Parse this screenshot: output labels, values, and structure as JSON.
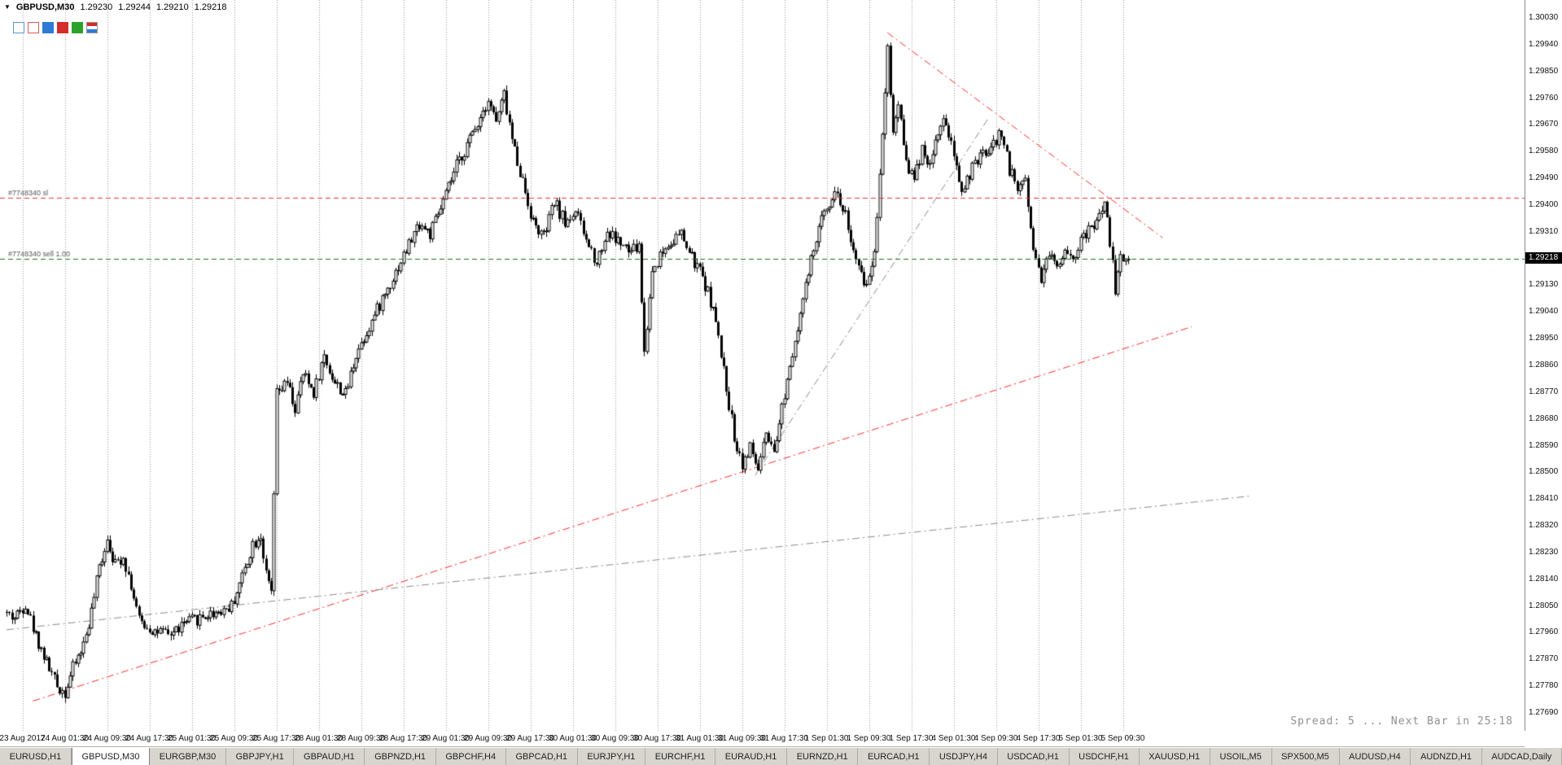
{
  "symbol_info": {
    "symbol": "GBPUSD,M30",
    "open": "1.29230",
    "high": "1.29244",
    "low": "1.29210",
    "close": "1.29218"
  },
  "toolbar_swatches": [
    {
      "name": "outline-blue-swatch",
      "fill": "#ffffff",
      "border": "#5b97d6"
    },
    {
      "name": "outline-red-swatch",
      "fill": "#ffffff",
      "border": "#d65b5b"
    },
    {
      "name": "blue-swatch",
      "fill": "#2b7bd4",
      "border": "#2b7bd4"
    },
    {
      "name": "red-swatch",
      "fill": "#d42b2b",
      "border": "#d42b2b"
    },
    {
      "name": "green-swatch",
      "fill": "#2ba32b",
      "border": "#2ba32b"
    },
    {
      "name": "flag-swatch",
      "stripes": [
        "#d42b2b",
        "#ffffff",
        "#2b7bd4"
      ],
      "border": "#999999"
    }
  ],
  "chart_data": {
    "type": "candlestick",
    "title": "GBPUSD,M30",
    "symbol": "GBPUSD",
    "timeframe": "M30",
    "price_axis": {
      "max": 1.3003,
      "min": 1.2769,
      "step": 0.0009,
      "labels": [
        "1.30030",
        "1.29940",
        "1.29850",
        "1.29760",
        "1.29670",
        "1.29580",
        "1.29490",
        "1.29400",
        "1.29310",
        "1.29220",
        "1.29130",
        "1.29040",
        "1.28950",
        "1.28860",
        "1.28770",
        "1.28680",
        "1.28590",
        "1.28500",
        "1.28410",
        "1.28320",
        "1.28230",
        "1.28140",
        "1.28050",
        "1.27960",
        "1.27870",
        "1.27780",
        "1.27690"
      ]
    },
    "time_axis": {
      "labels": [
        "23 Aug 2017",
        "24 Aug 01:30",
        "24 Aug 09:30",
        "24 Aug 17:30",
        "25 Aug 01:30",
        "25 Aug 09:30",
        "25 Aug 17:30",
        "28 Aug 01:30",
        "28 Aug 09:30",
        "28 Aug 17:30",
        "29 Aug 01:30",
        "29 Aug 09:30",
        "29 Aug 17:30",
        "30 Aug 01:30",
        "30 Aug 09:30",
        "30 Aug 17:30",
        "31 Aug 01:30",
        "31 Aug 09:30",
        "31 Aug 17:30",
        "1 Sep 01:30",
        "1 Sep 09:30",
        "1 Sep 17:30",
        "4 Sep 01:30",
        "4 Sep 09:30",
        "4 Sep 17:30",
        "5 Sep 01:30",
        "5 Sep 09:30"
      ],
      "first_label_bar": 6,
      "bars_per_label": 16
    },
    "bars_total": 425,
    "current_price": 1.29218,
    "current_price_label": "1.29218",
    "path_anchors": [
      [
        0,
        1.2803
      ],
      [
        4,
        1.2801
      ],
      [
        8,
        1.2806
      ],
      [
        12,
        1.2795
      ],
      [
        16,
        1.2786
      ],
      [
        20,
        1.2778
      ],
      [
        23,
        1.2776
      ],
      [
        26,
        1.2784
      ],
      [
        30,
        1.2792
      ],
      [
        33,
        1.2803
      ],
      [
        36,
        1.2818
      ],
      [
        39,
        1.2828
      ],
      [
        42,
        1.2819
      ],
      [
        45,
        1.2822
      ],
      [
        48,
        1.2812
      ],
      [
        51,
        1.28
      ],
      [
        56,
        1.2797
      ],
      [
        62,
        1.2795
      ],
      [
        68,
        1.2799
      ],
      [
        74,
        1.2801
      ],
      [
        80,
        1.2803
      ],
      [
        86,
        1.2805
      ],
      [
        90,
        1.2815
      ],
      [
        94,
        1.2826
      ],
      [
        97,
        1.2829
      ],
      [
        99,
        1.2815
      ],
      [
        101,
        1.2809
      ],
      [
        103,
        1.2876
      ],
      [
        107,
        1.288
      ],
      [
        110,
        1.2871
      ],
      [
        113,
        1.2883
      ],
      [
        117,
        1.2877
      ],
      [
        121,
        1.2889
      ],
      [
        125,
        1.288
      ],
      [
        129,
        1.2876
      ],
      [
        133,
        1.289
      ],
      [
        139,
        1.2901
      ],
      [
        145,
        1.2912
      ],
      [
        151,
        1.2923
      ],
      [
        157,
        1.2934
      ],
      [
        161,
        1.293
      ],
      [
        166,
        1.2941
      ],
      [
        171,
        1.2953
      ],
      [
        176,
        1.2962
      ],
      [
        180,
        1.297
      ],
      [
        183,
        1.2976
      ],
      [
        186,
        1.2968
      ],
      [
        189,
        1.2977
      ],
      [
        192,
        1.2962
      ],
      [
        196,
        1.2948
      ],
      [
        200,
        1.2934
      ],
      [
        204,
        1.2929
      ],
      [
        208,
        1.2941
      ],
      [
        212,
        1.2934
      ],
      [
        216,
        1.2938
      ],
      [
        220,
        1.2928
      ],
      [
        224,
        1.2921
      ],
      [
        228,
        1.2931
      ],
      [
        232,
        1.2928
      ],
      [
        236,
        1.2924
      ],
      [
        240,
        1.2926
      ],
      [
        242,
        1.289
      ],
      [
        245,
        1.2918
      ],
      [
        248,
        1.2923
      ],
      [
        252,
        1.2928
      ],
      [
        256,
        1.293
      ],
      [
        260,
        1.2922
      ],
      [
        264,
        1.2916
      ],
      [
        268,
        1.2905
      ],
      [
        272,
        1.2884
      ],
      [
        276,
        1.2862
      ],
      [
        279,
        1.2853
      ],
      [
        282,
        1.2858
      ],
      [
        285,
        1.2851
      ],
      [
        288,
        1.2862
      ],
      [
        291,
        1.2855
      ],
      [
        294,
        1.2872
      ],
      [
        298,
        1.2891
      ],
      [
        302,
        1.2908
      ],
      [
        306,
        1.2925
      ],
      [
        310,
        1.2938
      ],
      [
        314,
        1.2945
      ],
      [
        318,
        1.2937
      ],
      [
        322,
        1.292
      ],
      [
        326,
        1.2913
      ],
      [
        329,
        1.2924
      ],
      [
        332,
        1.2965
      ],
      [
        334,
        1.2993
      ],
      [
        336,
        1.2964
      ],
      [
        338,
        1.2975
      ],
      [
        341,
        1.2955
      ],
      [
        344,
        1.2948
      ],
      [
        347,
        1.296
      ],
      [
        350,
        1.2953
      ],
      [
        353,
        1.2965
      ],
      [
        356,
        1.2968
      ],
      [
        359,
        1.2955
      ],
      [
        362,
        1.2945
      ],
      [
        366,
        1.2952
      ],
      [
        370,
        1.2957
      ],
      [
        374,
        1.296
      ],
      [
        377,
        1.2965
      ],
      [
        380,
        1.2952
      ],
      [
        383,
        1.2946
      ],
      [
        386,
        1.2949
      ],
      [
        389,
        1.2925
      ],
      [
        392,
        1.2916
      ],
      [
        395,
        1.2924
      ],
      [
        398,
        1.2919
      ],
      [
        401,
        1.2926
      ],
      [
        404,
        1.2922
      ],
      [
        407,
        1.2928
      ],
      [
        410,
        1.2931
      ],
      [
        413,
        1.2935
      ],
      [
        416,
        1.294
      ],
      [
        418,
        1.2928
      ],
      [
        420,
        1.2912
      ],
      [
        422,
        1.2922
      ],
      [
        424,
        1.29218
      ]
    ],
    "trendlines": [
      {
        "name": "rising-support-red-trendline",
        "color": "#ff2a2a",
        "p1": [
          10,
          1.2773
        ],
        "p2": [
          448,
          1.2899
        ]
      },
      {
        "name": "falling-resistance-red-trendline",
        "color": "#ff2a2a",
        "p1": [
          333,
          1.2998
        ],
        "p2": [
          437,
          1.2929
        ]
      },
      {
        "name": "long-gray-trendline",
        "color": "#8a8a8a",
        "p1": [
          0,
          1.2797
        ],
        "p2": [
          470,
          1.2842
        ]
      },
      {
        "name": "steep-gray-trendline",
        "color": "#8a8a8a",
        "p1": [
          283,
          1.2849
        ],
        "p2": [
          371,
          1.2969
        ]
      }
    ],
    "order_lines": [
      {
        "name": "stop-loss-line",
        "label": "#7748340 sl",
        "price": 1.29425,
        "color": "#ee3333"
      },
      {
        "name": "sell-order-line",
        "label": "#7748340 sell 1.00",
        "price": 1.29218,
        "color": "#0e7d0e"
      }
    ],
    "status_text": "Spread: 5 ... Next Bar in 25:18"
  },
  "tabs": {
    "active": "GBPUSD,M30",
    "items": [
      "EURUSD,H1",
      "GBPUSD,M30",
      "EURGBP,M30",
      "GBPJPY,H1",
      "GBPAUD,H1",
      "GBPNZD,H1",
      "GBPCHF,H4",
      "GBPCAD,H1",
      "EURJPY,H1",
      "EURCHF,H1",
      "EURAUD,H1",
      "EURNZD,H1",
      "EURCAD,H1",
      "USDJPY,H4",
      "USDCAD,H1",
      "USDCHF,H1",
      "XAUUSD,H1",
      "USOIL,M5",
      "SPX500,M5",
      "AUDUSD,H4",
      "AUDNZD,H1",
      "AUDCAD,Daily"
    ]
  },
  "colors": {
    "background": "#ffffff",
    "grid": "#999999",
    "candle": "#000000",
    "axis_text": "#111111",
    "price_tag_bg": "#000000",
    "price_tag_text": "#ffffff",
    "status_text": "#8f8f8f",
    "order_label_text": "#555555"
  }
}
